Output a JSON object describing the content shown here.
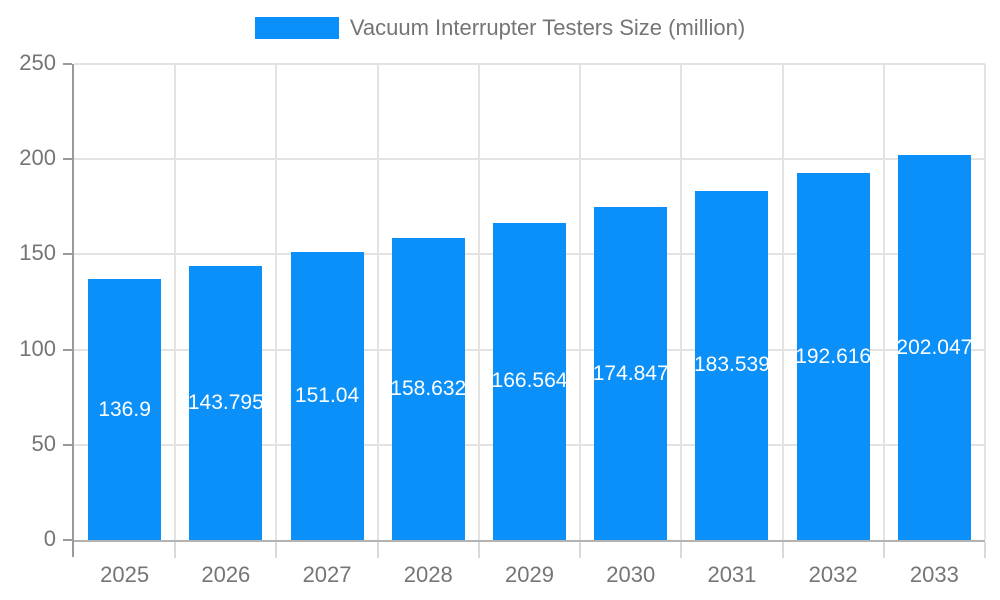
{
  "legend": {
    "label": "Vacuum Interrupter Testers Size (million)"
  },
  "chart_data": {
    "type": "bar",
    "title": "Vacuum Interrupter Testers Size (million)",
    "categories": [
      "2025",
      "2026",
      "2027",
      "2028",
      "2029",
      "2030",
      "2031",
      "2032",
      "2033"
    ],
    "values": [
      136.9,
      143.795,
      151.04,
      158.632,
      166.564,
      174.847,
      183.539,
      192.616,
      202.047
    ],
    "value_labels": [
      "136.9",
      "143.795",
      "151.04",
      "158.632",
      "166.564",
      "174.847",
      "183.539",
      "192.616",
      "202.047"
    ],
    "xlabel": "",
    "ylabel": "",
    "ylim": [
      0,
      250
    ],
    "yticks": [
      0,
      50,
      100,
      150,
      200,
      250
    ],
    "grid": true,
    "legend_position": "top-center",
    "colors": {
      "bar": "#0a90f8",
      "bar_label_text": "#ffffff",
      "grid_line": "#e3e3e3",
      "y_axis_line": "#9a9a9a",
      "x_axis_line": "#b3b3b3",
      "x_tick": "#d9d9d9",
      "axis_text": "#757575"
    }
  }
}
